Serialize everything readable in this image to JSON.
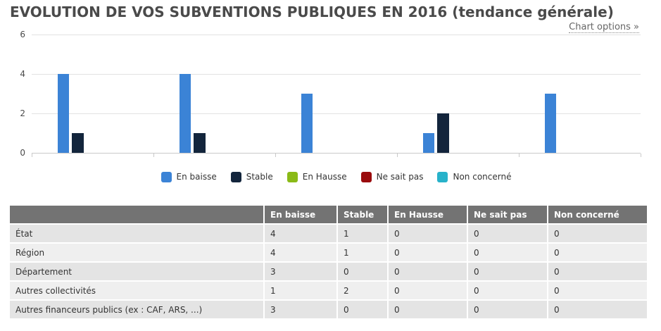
{
  "page": {
    "title": "EVOLUTION DE VOS SUBVENTIONS PUBLIQUES EN 2016 (tendance générale)",
    "chart_options_link": "Chart options »"
  },
  "colors": {
    "title_text": "#4a4a4a",
    "link_text": "#666666",
    "table_header_bg": "#737373",
    "table_row_odd_bg": "#e4e4e4",
    "table_row_even_bg": "#efefef",
    "gridline": "#e2e2e2",
    "axis_line": "#c9c9c9"
  },
  "chart_data": {
    "type": "bar",
    "title": "EVOLUTION DE VOS SUBVENTIONS PUBLIQUES EN 2016 (tendance générale)",
    "categories": [
      "État",
      "Région",
      "Département",
      "Autres collectivités",
      "Autres financeurs publics (ex : CAF, ARS, ...)"
    ],
    "series": [
      {
        "name": "En baisse",
        "color": "#3b83d6",
        "values": [
          4,
          4,
          3,
          1,
          3
        ]
      },
      {
        "name": "Stable",
        "color": "#13253c",
        "values": [
          1,
          1,
          0,
          2,
          0
        ]
      },
      {
        "name": "En Hausse",
        "color": "#8aba17",
        "values": [
          0,
          0,
          0,
          0,
          0
        ]
      },
      {
        "name": "Ne sait pas",
        "color": "#9a0b0d",
        "values": [
          0,
          0,
          0,
          0,
          0
        ]
      },
      {
        "name": "Non concerné",
        "color": "#28b2ca",
        "values": [
          0,
          0,
          0,
          0,
          0
        ]
      }
    ],
    "ylim": [
      0,
      6
    ],
    "yticks": [
      0,
      2,
      4,
      6
    ],
    "grid": true,
    "legend_position": "bottom",
    "x_axis_category_labels_shown": false
  },
  "table": {
    "headers": [
      "",
      "En baisse",
      "Stable",
      "En Hausse",
      "Ne sait pas",
      "Non concerné"
    ],
    "rows": [
      {
        "label": "État",
        "values": [
          "4",
          "1",
          "0",
          "0",
          "0"
        ]
      },
      {
        "label": "Région",
        "values": [
          "4",
          "1",
          "0",
          "0",
          "0"
        ]
      },
      {
        "label": "Département",
        "values": [
          "3",
          "0",
          "0",
          "0",
          "0"
        ]
      },
      {
        "label": "Autres collectivités",
        "values": [
          "1",
          "2",
          "0",
          "0",
          "0"
        ]
      },
      {
        "label": "Autres financeurs publics (ex : CAF, ARS, ...)",
        "values": [
          "3",
          "0",
          "0",
          "0",
          "0"
        ]
      }
    ]
  }
}
